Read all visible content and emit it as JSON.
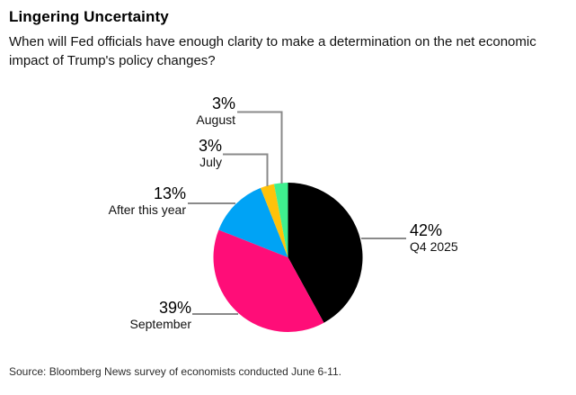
{
  "header": {
    "title": "Lingering Uncertainty",
    "subtitle": "When will Fed officials have enough clarity to make a determination on the net economic impact of Trump's policy changes?"
  },
  "chart_data": {
    "type": "pie",
    "title": "Lingering Uncertainty",
    "start_angle_deg": 0,
    "direction": "clockwise",
    "legend_position": "none",
    "leader_line_color": "#8a8a8a",
    "slices": [
      {
        "label": "Q4 2025",
        "value": 42,
        "pct_label": "42%",
        "color": "#000000"
      },
      {
        "label": "September",
        "value": 39,
        "pct_label": "39%",
        "color": "#ff0d78"
      },
      {
        "label": "After this year",
        "value": 13,
        "pct_label": "13%",
        "color": "#00a3f5"
      },
      {
        "label": "July",
        "value": 3,
        "pct_label": "3%",
        "color": "#ffc20a"
      },
      {
        "label": "August",
        "value": 3,
        "pct_label": "3%",
        "color": "#3ff08f"
      }
    ]
  },
  "footer": {
    "source": "Source: Bloomberg News survey of economists conducted June 6-11."
  }
}
